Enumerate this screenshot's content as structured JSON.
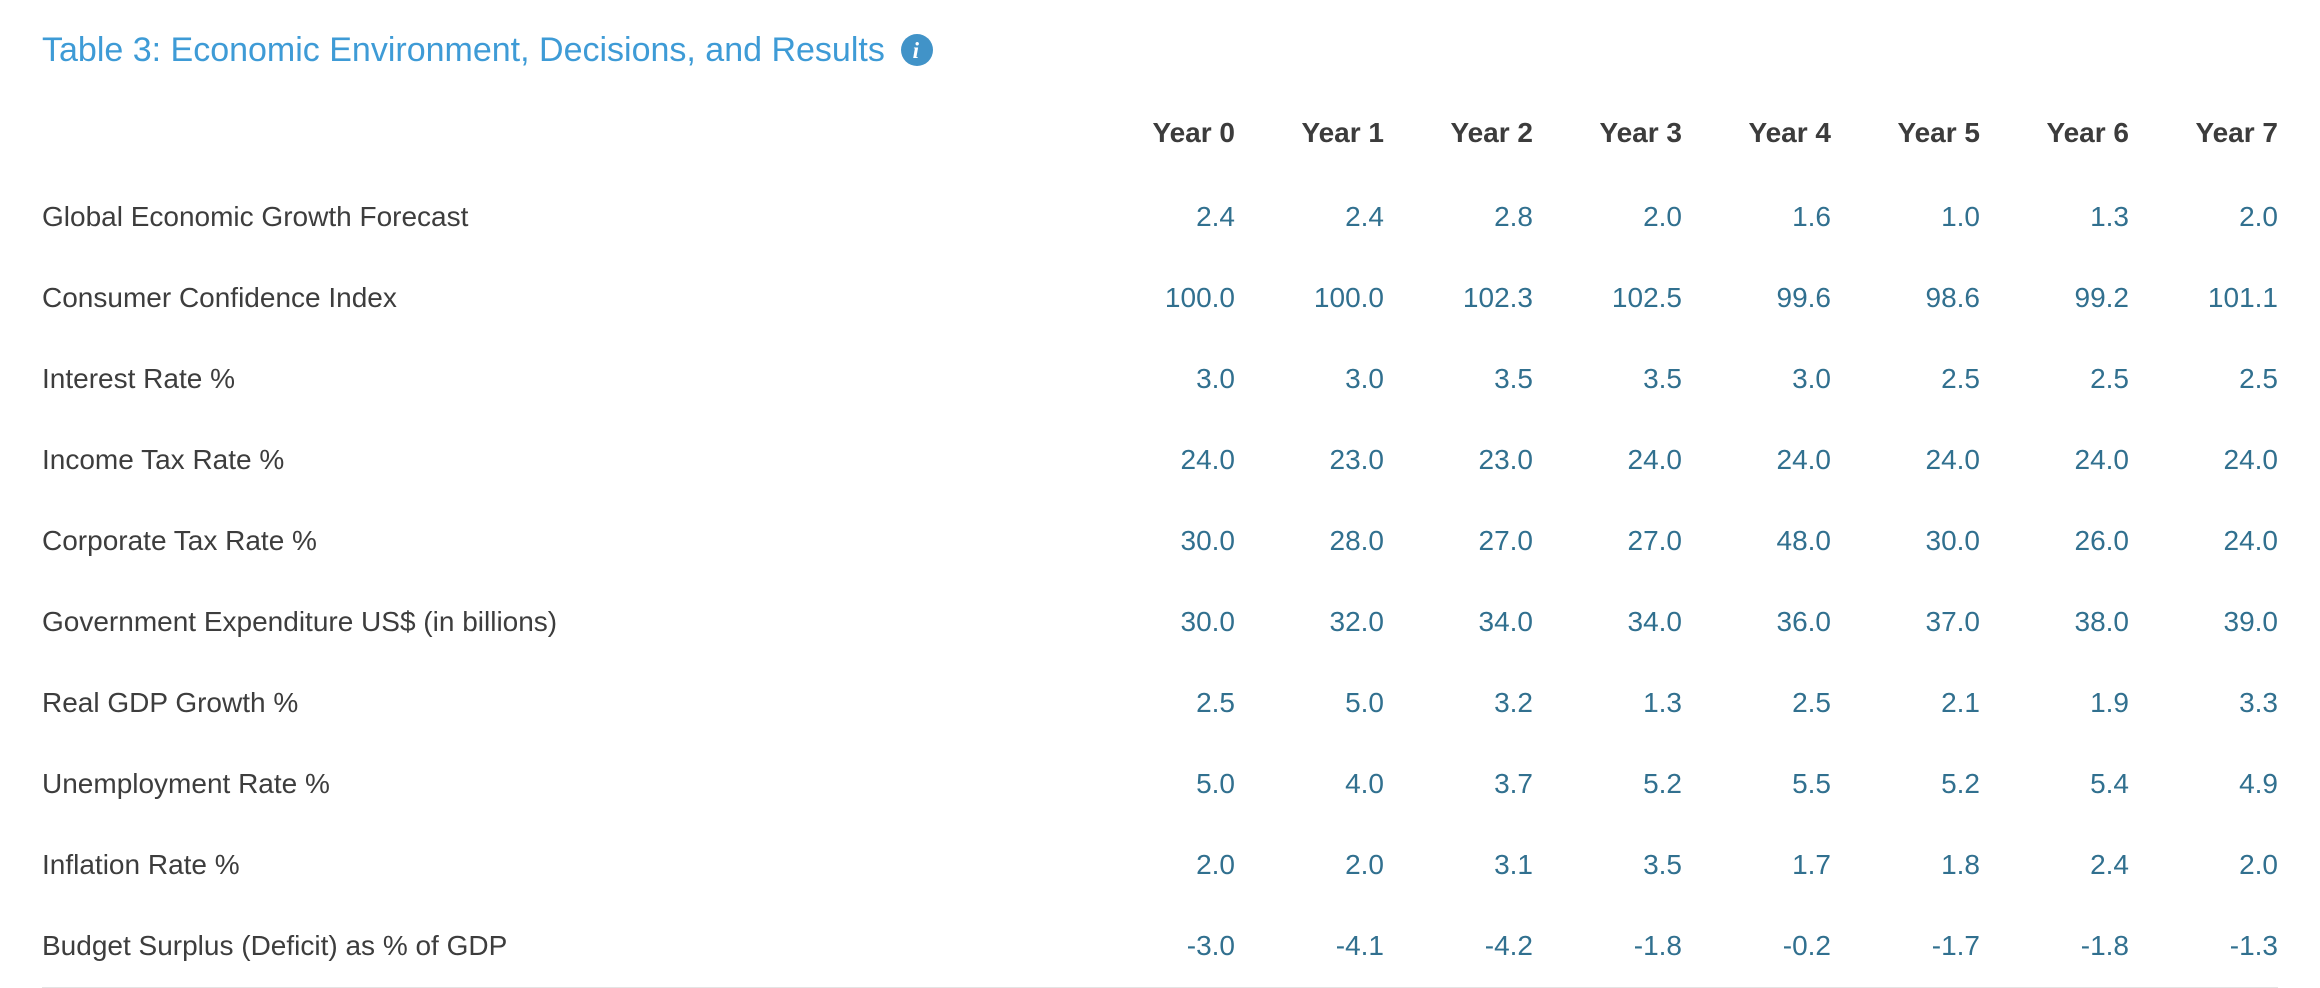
{
  "page": {
    "title": "Table 3: Economic Environment, Decisions, and Results"
  },
  "icons": {
    "info": "i"
  },
  "colors": {
    "title": "#3e9bd6",
    "info_icon_bg": "#4193c8",
    "value_text": "#31708f",
    "label_text": "#3d3d3d",
    "header_text": "#3c3c3c"
  },
  "chart_data": {
    "type": "table",
    "title": "Table 3: Economic Environment, Decisions, and Results",
    "columns": [
      "Year 0",
      "Year 1",
      "Year 2",
      "Year 3",
      "Year 4",
      "Year 5",
      "Year 6",
      "Year 7"
    ],
    "rows": [
      {
        "label": "Global Economic Growth Forecast",
        "values": [
          "2.4",
          "2.4",
          "2.8",
          "2.0",
          "1.6",
          "1.0",
          "1.3",
          "2.0"
        ]
      },
      {
        "label": "Consumer Confidence Index",
        "values": [
          "100.0",
          "100.0",
          "102.3",
          "102.5",
          "99.6",
          "98.6",
          "99.2",
          "101.1"
        ]
      },
      {
        "label": "Interest Rate %",
        "values": [
          "3.0",
          "3.0",
          "3.5",
          "3.5",
          "3.0",
          "2.5",
          "2.5",
          "2.5"
        ]
      },
      {
        "label": "Income Tax Rate %",
        "values": [
          "24.0",
          "23.0",
          "23.0",
          "24.0",
          "24.0",
          "24.0",
          "24.0",
          "24.0"
        ]
      },
      {
        "label": "Corporate Tax Rate %",
        "values": [
          "30.0",
          "28.0",
          "27.0",
          "27.0",
          "48.0",
          "30.0",
          "26.0",
          "24.0"
        ]
      },
      {
        "label": "Government Expenditure US$ (in billions)",
        "values": [
          "30.0",
          "32.0",
          "34.0",
          "34.0",
          "36.0",
          "37.0",
          "38.0",
          "39.0"
        ]
      },
      {
        "label": "Real GDP Growth %",
        "values": [
          "2.5",
          "5.0",
          "3.2",
          "1.3",
          "2.5",
          "2.1",
          "1.9",
          "3.3"
        ]
      },
      {
        "label": "Unemployment Rate %",
        "values": [
          "5.0",
          "4.0",
          "3.7",
          "5.2",
          "5.5",
          "5.2",
          "5.4",
          "4.9"
        ]
      },
      {
        "label": "Inflation Rate %",
        "values": [
          "2.0",
          "2.0",
          "3.1",
          "3.5",
          "1.7",
          "1.8",
          "2.4",
          "2.0"
        ]
      },
      {
        "label": "Budget Surplus (Deficit) as % of GDP",
        "values": [
          "-3.0",
          "-4.1",
          "-4.2",
          "-1.8",
          "-0.2",
          "-1.7",
          "-1.8",
          "-1.3"
        ]
      }
    ]
  }
}
